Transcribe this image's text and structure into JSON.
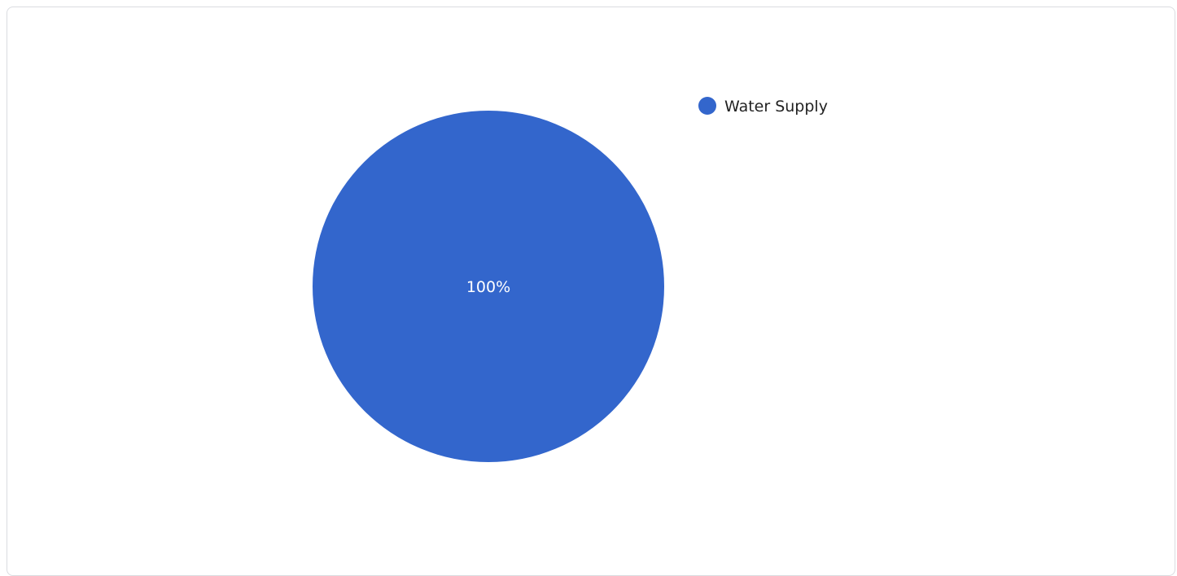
{
  "chart_data": {
    "type": "pie",
    "title": "",
    "slices": [
      {
        "label": "Water Supply",
        "value": 100,
        "percent_label": "100%",
        "color": "#3366cc"
      }
    ],
    "legend_position": "top-right"
  }
}
